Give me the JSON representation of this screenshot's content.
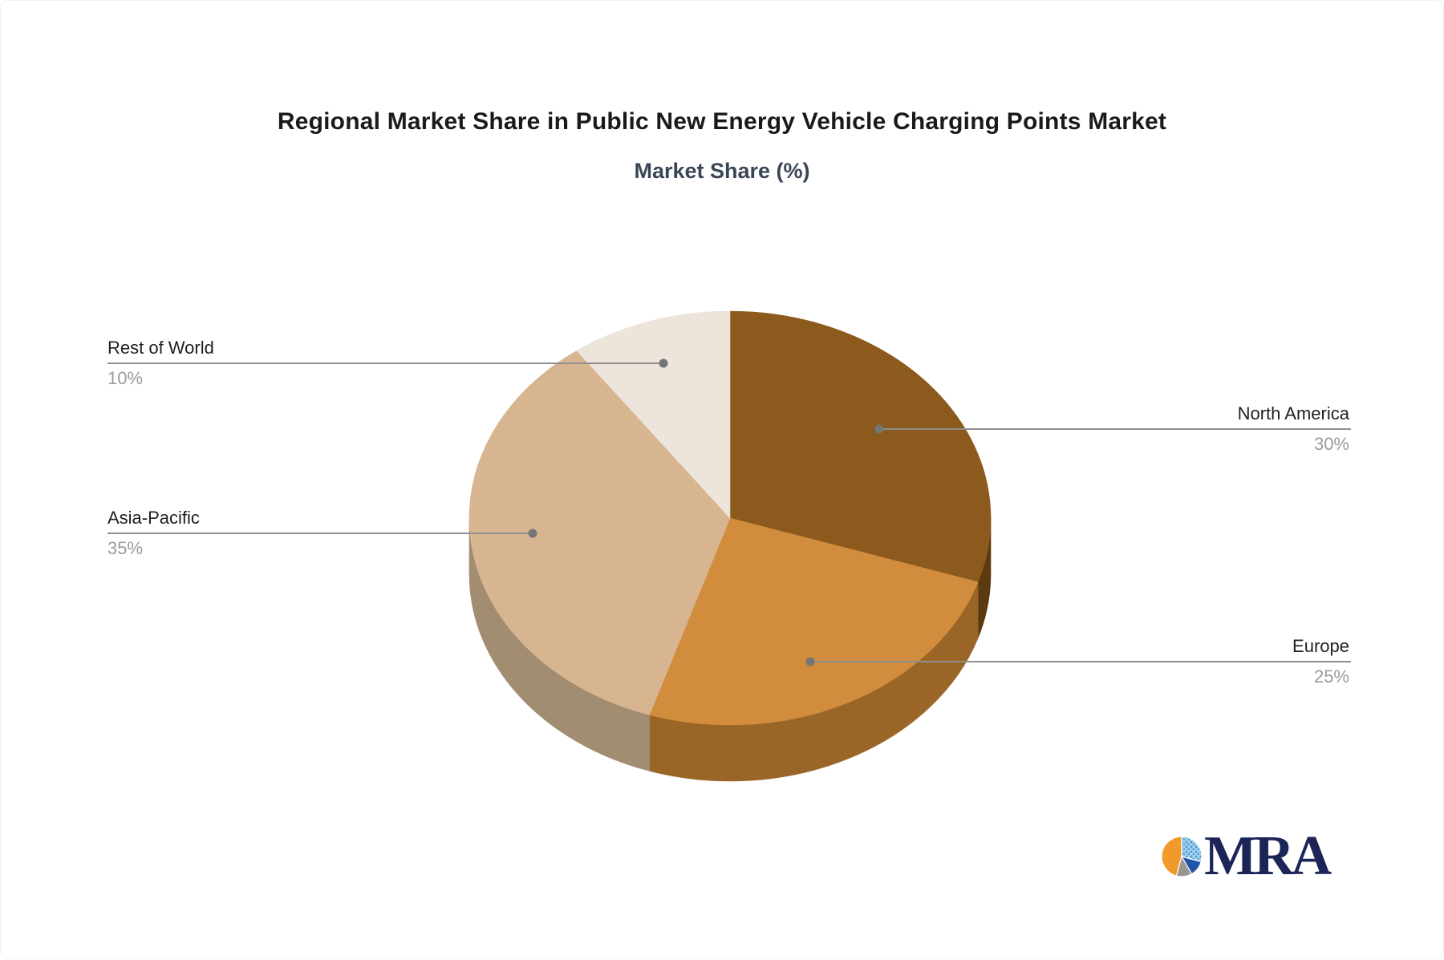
{
  "header": {
    "title": "Regional Market Share in Public New Energy Vehicle Charging Points Market",
    "subtitle": "Market Share (%)",
    "title_color": "#1a1a1a",
    "subtitle_color": "#3a4656"
  },
  "chart_data": {
    "type": "pie",
    "style": "3d",
    "title": "Regional Market Share in Public New Energy Vehicle Charging Points Market",
    "subtitle": "Market Share (%)",
    "unit": "%",
    "start_angle": "12 o'clock, clockwise",
    "legend_position": "none",
    "slices": [
      {
        "label": "North America",
        "value": 30,
        "pct_label": "30%",
        "color": "#8B5A1C",
        "side_color": "#5C3A10"
      },
      {
        "label": "Europe",
        "value": 25,
        "pct_label": "25%",
        "color": "#D28C3E",
        "side_color": "#9A6628"
      },
      {
        "label": "Asia-Pacific",
        "value": 35,
        "pct_label": "35%",
        "color": "#D6B590",
        "side_color": "#A28D72"
      },
      {
        "label": "Rest of World",
        "value": 10,
        "pct_label": "10%",
        "color": "#EDE4DB",
        "side_color": "#C9BDB1"
      }
    ],
    "label_name_color": "#1f1f1f",
    "label_pct_color": "#9a9a9a",
    "leader_line_color": "#8f8f8f",
    "leader_dot_color": "#757575"
  },
  "logo": {
    "text": "MRA",
    "text_color": "#1b2558",
    "icon_colors": {
      "orange": "#F09A2C",
      "light_blue": "#A9D3F1",
      "dot_blue": "#4E9BD5",
      "dark_blue": "#1F55A8",
      "gray": "#9C9690"
    }
  }
}
